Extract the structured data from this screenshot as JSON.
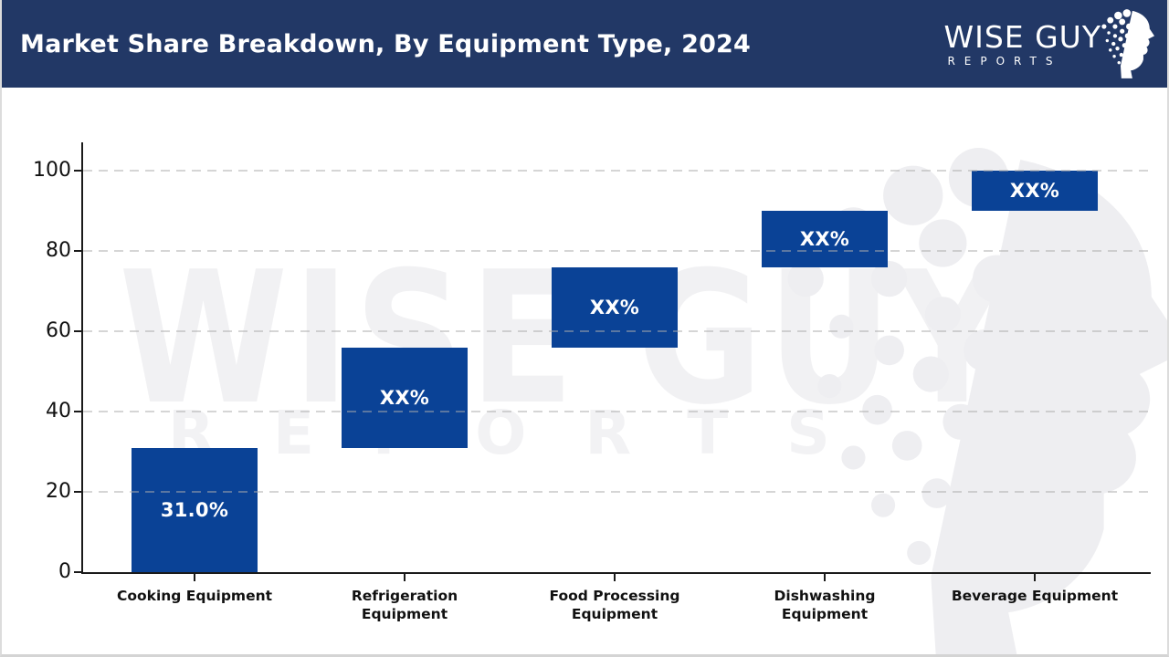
{
  "header": {
    "title": "Market Share Breakdown, By Equipment Type, 2024",
    "bg_color": "#223866",
    "logo": {
      "wordmark": "WISE GUY",
      "subtitle": "REPORTS",
      "icon": "dotted-head-profile-icon"
    }
  },
  "watermark": {
    "wordmark": "WISE GUY",
    "subtitle": "REPORTS",
    "icon": "dotted-head-profile-icon"
  },
  "chart_data": {
    "type": "bar",
    "subtype": "waterfall",
    "title": "Market Share Breakdown, By Equipment Type, 2024",
    "categories": [
      "Cooking Equipment",
      "Refrigeration Equipment",
      "Food Processing Equipment",
      "Dishwashing Equipment",
      "Beverage Equipment"
    ],
    "bars": [
      {
        "category": "Cooking Equipment",
        "start": 0,
        "end": 31,
        "label": "31.0%"
      },
      {
        "category": "Refrigeration Equipment",
        "start": 31,
        "end": 56,
        "label": "XX%"
      },
      {
        "category": "Food Processing Equipment",
        "start": 56,
        "end": 76,
        "label": "XX%"
      },
      {
        "category": "Dishwashing Equipment",
        "start": 76,
        "end": 90,
        "label": "XX%"
      },
      {
        "category": "Beverage Equipment",
        "start": 90,
        "end": 100,
        "label": "XX%"
      }
    ],
    "yticks": [
      0,
      20,
      40,
      60,
      80,
      100
    ],
    "ylim": [
      0,
      106
    ],
    "xlabel": "",
    "ylabel": "",
    "grid": "horizontal-dashed",
    "legend": "none",
    "bar_color": "#0a4296",
    "colors": {
      "header_bg": "#223866",
      "bar": "#0a4296",
      "bar_label": "#ffffff",
      "grid": "#d7d7d7",
      "axis": "#1a1a1a",
      "tick_text": "#111111",
      "watermark": "#f1f1f3"
    }
  }
}
